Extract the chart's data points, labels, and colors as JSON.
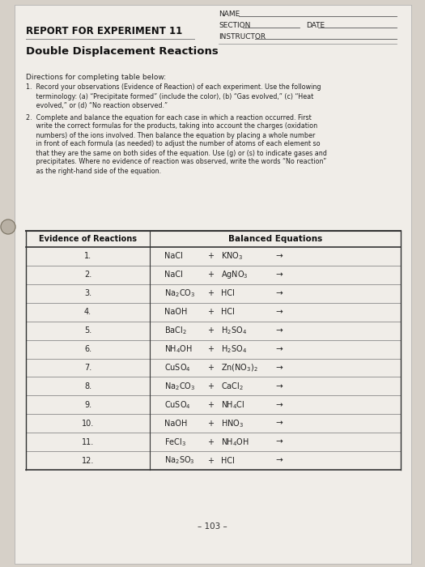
{
  "bg_color": "#d6d0c8",
  "paper_color": "#f0ede8",
  "title_main": "REPORT FOR EXPERIMENT 11",
  "title_sub": "Double Displacement Reactions",
  "name_label": "NAME",
  "section_label": "SECTION",
  "date_label": "DATE",
  "instructor_label": "INSTRUCTOR",
  "directions_title": "Directions for completing table below:",
  "dir1_lines": [
    "1.  Record your observations (Evidence of Reaction) of each experiment. Use the following",
    "     terminology: (a) “Precipitate formed” (include the color), (b) “Gas evolved,” (c) “Heat",
    "     evolved,” or (d) “No reaction observed.”"
  ],
  "dir2_lines": [
    "2.  Complete and balance the equation for each case in which a reaction occurred. First",
    "     write the correct formulas for the products, taking into account the charges (oxidation",
    "     numbers) of the ions involved. Then balance the equation by placing a whole number",
    "     in front of each formula (as needed) to adjust the number of atoms of each element so",
    "     that they are the same on both sides of the equation. Use (g) or (s) to indicate gases and",
    "     precipitates. Where no evidence of reaction was observed, write the words “No reaction”",
    "     as the right-hand side of the equation."
  ],
  "col1_header": "Evidence of Reactions",
  "col2_header": "Balanced Equations",
  "rows": [
    {
      "num": "1.",
      "eq1": "NaCl",
      "plus": "+",
      "eq2": "KNO$_3$",
      "arrow": "→"
    },
    {
      "num": "2.",
      "eq1": "NaCl",
      "plus": "+",
      "eq2": "AgNO$_3$",
      "arrow": "→"
    },
    {
      "num": "3.",
      "eq1": "Na$_2$CO$_3$",
      "plus": "+",
      "eq2": "HCl",
      "arrow": "→"
    },
    {
      "num": "4.",
      "eq1": "NaOH",
      "plus": "+",
      "eq2": "HCl",
      "arrow": "→"
    },
    {
      "num": "5.",
      "eq1": "BaCl$_2$",
      "plus": "+",
      "eq2": "H$_2$SO$_4$",
      "arrow": "→"
    },
    {
      "num": "6.",
      "eq1": "NH$_4$OH",
      "plus": "+",
      "eq2": "H$_2$SO$_4$",
      "arrow": "→"
    },
    {
      "num": "7.",
      "eq1": "CuSO$_4$",
      "plus": "+",
      "eq2": "Zn(NO$_3$)$_2$",
      "arrow": "→"
    },
    {
      "num": "8.",
      "eq1": "Na$_2$CO$_3$",
      "plus": "+",
      "eq2": "CaCl$_2$",
      "arrow": "→"
    },
    {
      "num": "9.",
      "eq1": "CuSO$_4$",
      "plus": "+",
      "eq2": "NH$_4$Cl",
      "arrow": "→"
    },
    {
      "num": "10.",
      "eq1": "NaOH",
      "plus": "+",
      "eq2": "HNO$_3$",
      "arrow": "→"
    },
    {
      "num": "11.",
      "eq1": "FeCl$_3$",
      "plus": "+",
      "eq2": "NH$_4$OH",
      "arrow": "→"
    },
    {
      "num": "12.",
      "eq1": "Na$_2$SO$_3$",
      "plus": "+",
      "eq2": "HCl",
      "arrow": "→"
    }
  ],
  "page_number": "– 103 –"
}
